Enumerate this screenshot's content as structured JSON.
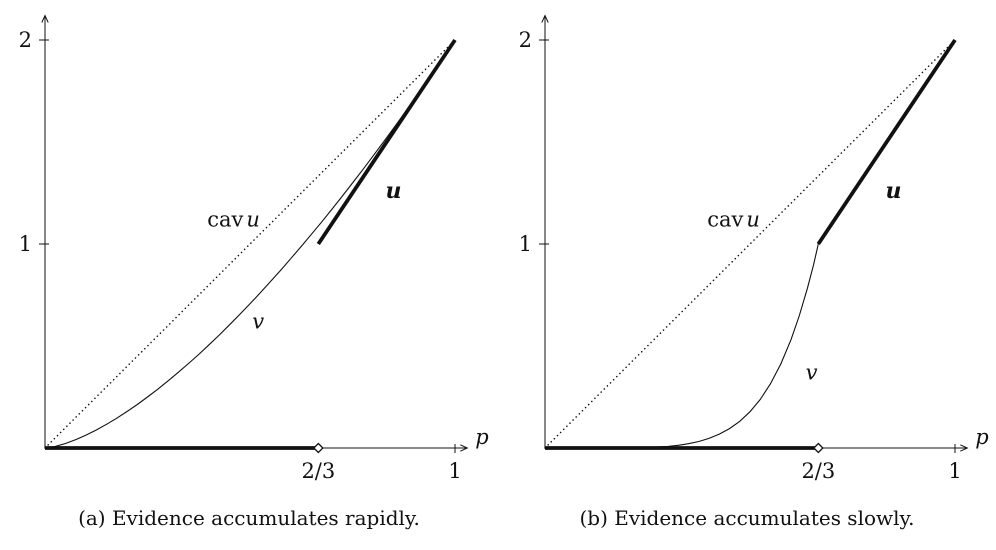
{
  "figure": {
    "colors": {
      "ink": "#111111",
      "background": "#ffffff"
    },
    "captions": {
      "a": "(a) Evidence accumulates rapidly.",
      "b": "(b) Evidence accumulates slowly."
    }
  },
  "chart_data": [
    {
      "id": "a",
      "type": "line",
      "caption": "(a) Evidence accumulates rapidly.",
      "x_axis_label": "p",
      "xlim": [
        0,
        1.03
      ],
      "ylim": [
        0,
        2.12
      ],
      "grid": false,
      "x_ticks": [
        {
          "value": 0.6667,
          "label": "2/3"
        },
        {
          "value": 1,
          "label": "1"
        }
      ],
      "y_ticks": [
        {
          "value": 1,
          "label": "1"
        },
        {
          "value": 2,
          "label": "2"
        }
      ],
      "series": [
        {
          "name": "cav-u",
          "style": "dotted",
          "width": 1.5,
          "points": [
            [
              0,
              0
            ],
            [
              1,
              2
            ]
          ]
        },
        {
          "name": "v-curve",
          "style": "solid",
          "width": 1.1,
          "points": [
            [
              0,
              0
            ],
            [
              0.025,
              0.008
            ],
            [
              0.05,
              0.022
            ],
            [
              0.075,
              0.041
            ],
            [
              0.1,
              0.063
            ],
            [
              0.125,
              0.088
            ],
            [
              0.15,
              0.116
            ],
            [
              0.175,
              0.146
            ],
            [
              0.2,
              0.179
            ],
            [
              0.225,
              0.213
            ],
            [
              0.25,
              0.25
            ],
            [
              0.275,
              0.288
            ],
            [
              0.3,
              0.329
            ],
            [
              0.325,
              0.371
            ],
            [
              0.35,
              0.414
            ],
            [
              0.375,
              0.459
            ],
            [
              0.4,
              0.506
            ],
            [
              0.425,
              0.554
            ],
            [
              0.45,
              0.604
            ],
            [
              0.475,
              0.655
            ],
            [
              0.5,
              0.707
            ],
            [
              0.525,
              0.761
            ],
            [
              0.55,
              0.816
            ],
            [
              0.575,
              0.872
            ],
            [
              0.6,
              0.93
            ],
            [
              0.625,
              0.988
            ],
            [
              0.65,
              1.048
            ],
            [
              0.675,
              1.109
            ],
            [
              0.7,
              1.171
            ],
            [
              0.725,
              1.235
            ],
            [
              0.75,
              1.299
            ],
            [
              0.775,
              1.364
            ],
            [
              0.8,
              1.431
            ],
            [
              0.825,
              1.499
            ],
            [
              0.85,
              1.567
            ],
            [
              0.875,
              1.637
            ],
            [
              0.9,
              1.708
            ],
            [
              0.925,
              1.779
            ],
            [
              0.95,
              1.852
            ],
            [
              0.975,
              1.926
            ],
            [
              1,
              2
            ]
          ]
        },
        {
          "name": "u-zero-segment",
          "style": "solid",
          "width": 3.8,
          "points": [
            [
              0,
              0
            ],
            [
              0.6667,
              0
            ]
          ]
        },
        {
          "name": "u-segment",
          "style": "solid",
          "width": 3.8,
          "points": [
            [
              0.6667,
              1
            ],
            [
              1,
              2
            ]
          ]
        }
      ],
      "markers": [
        {
          "name": "open-diamond",
          "shape": "diamond-open",
          "x": 0.6667,
          "y": 0
        }
      ],
      "annotations": [
        {
          "name": "cav-u-label",
          "x": 0.46,
          "y": 1.12,
          "parts": [
            {
              "text": "cav"
            },
            {
              "text": "u",
              "italic": true
            }
          ]
        },
        {
          "name": "u-label",
          "x": 0.85,
          "y": 1.26,
          "parts": [
            {
              "text": "u",
              "italic": true,
              "bold": true
            }
          ]
        },
        {
          "name": "v-label",
          "x": 0.52,
          "y": 0.62,
          "parts": [
            {
              "text": "v",
              "italic": true
            }
          ]
        }
      ]
    },
    {
      "id": "b",
      "type": "line",
      "caption": "(b) Evidence accumulates slowly.",
      "x_axis_label": "p",
      "xlim": [
        0,
        1.03
      ],
      "ylim": [
        0,
        2.12
      ],
      "grid": false,
      "x_ticks": [
        {
          "value": 0.6667,
          "label": "2/3"
        },
        {
          "value": 1,
          "label": "1"
        }
      ],
      "y_ticks": [
        {
          "value": 1,
          "label": "1"
        },
        {
          "value": 2,
          "label": "2"
        }
      ],
      "series": [
        {
          "name": "cav-u",
          "style": "dotted",
          "width": 1.5,
          "points": [
            [
              0,
              0
            ],
            [
              1,
              2
            ]
          ]
        },
        {
          "name": "v-curve",
          "style": "solid",
          "width": 1.1,
          "points": [
            [
              0,
              0
            ],
            [
              0.05,
              0
            ],
            [
              0.1,
              0
            ],
            [
              0.15,
              0
            ],
            [
              0.2,
              0.001
            ],
            [
              0.25,
              0.003
            ],
            [
              0.3,
              0.008
            ],
            [
              0.325,
              0.013
            ],
            [
              0.35,
              0.021
            ],
            [
              0.375,
              0.032
            ],
            [
              0.4,
              0.047
            ],
            [
              0.425,
              0.068
            ],
            [
              0.45,
              0.095
            ],
            [
              0.475,
              0.131
            ],
            [
              0.5,
              0.178
            ],
            [
              0.525,
              0.238
            ],
            [
              0.55,
              0.315
            ],
            [
              0.575,
              0.412
            ],
            [
              0.6,
              0.531
            ],
            [
              0.62,
              0.647
            ],
            [
              0.64,
              0.783
            ],
            [
              0.655,
              0.899
            ],
            [
              0.6667,
              1
            ],
            [
              0.7,
              1.1
            ],
            [
              0.75,
              1.25
            ],
            [
              0.8,
              1.4
            ],
            [
              0.85,
              1.55
            ],
            [
              0.9,
              1.7
            ],
            [
              0.95,
              1.85
            ],
            [
              1,
              2
            ]
          ]
        },
        {
          "name": "u-zero-segment",
          "style": "solid",
          "width": 3.8,
          "points": [
            [
              0,
              0
            ],
            [
              0.6667,
              0
            ]
          ]
        },
        {
          "name": "u-segment",
          "style": "solid",
          "width": 3.8,
          "points": [
            [
              0.6667,
              1
            ],
            [
              1,
              2
            ]
          ]
        }
      ],
      "markers": [
        {
          "name": "open-diamond",
          "shape": "diamond-open",
          "x": 0.6667,
          "y": 0
        }
      ],
      "annotations": [
        {
          "name": "cav-u-label",
          "x": 0.46,
          "y": 1.12,
          "parts": [
            {
              "text": "cav"
            },
            {
              "text": "u",
              "italic": true
            }
          ]
        },
        {
          "name": "u-label",
          "x": 0.85,
          "y": 1.26,
          "parts": [
            {
              "text": "u",
              "italic": true,
              "bold": true
            }
          ]
        },
        {
          "name": "v-label",
          "x": 0.65,
          "y": 0.37,
          "parts": [
            {
              "text": "v",
              "italic": true
            }
          ]
        }
      ]
    }
  ]
}
